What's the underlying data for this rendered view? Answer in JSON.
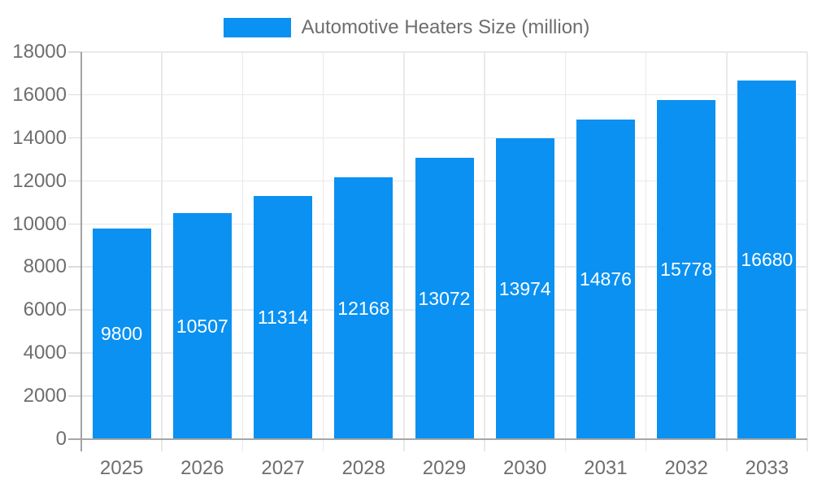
{
  "legend": {
    "label": "Automotive Heaters Size (million)"
  },
  "chart_data": {
    "type": "bar",
    "title": "Automotive Heaters Size (million)",
    "categories": [
      "2025",
      "2026",
      "2027",
      "2028",
      "2029",
      "2030",
      "2031",
      "2032",
      "2033"
    ],
    "values": [
      9800,
      10507,
      11314,
      12168,
      13072,
      13974,
      14876,
      15778,
      16680
    ],
    "xlabel": "",
    "ylabel": "",
    "ylim": [
      0,
      18000
    ],
    "ytick_step": 2000,
    "ytick_labels": [
      "0",
      "2000",
      "4000",
      "6000",
      "8000",
      "10000",
      "12000",
      "14000",
      "16000",
      "18000"
    ],
    "grid": true,
    "legend_position": "top-center",
    "value_label_style": "inside-center-white"
  },
  "colors": {
    "bar": "#0a91f2",
    "value_label": "#ffffff",
    "axis_text": "#6e6e6e",
    "grid_line": "#e9e9e9",
    "axis_line": "#a3a3a3",
    "tick_line": "#dcdcdc",
    "baseline": "#a6a6a6",
    "background": "#ffffff"
  }
}
